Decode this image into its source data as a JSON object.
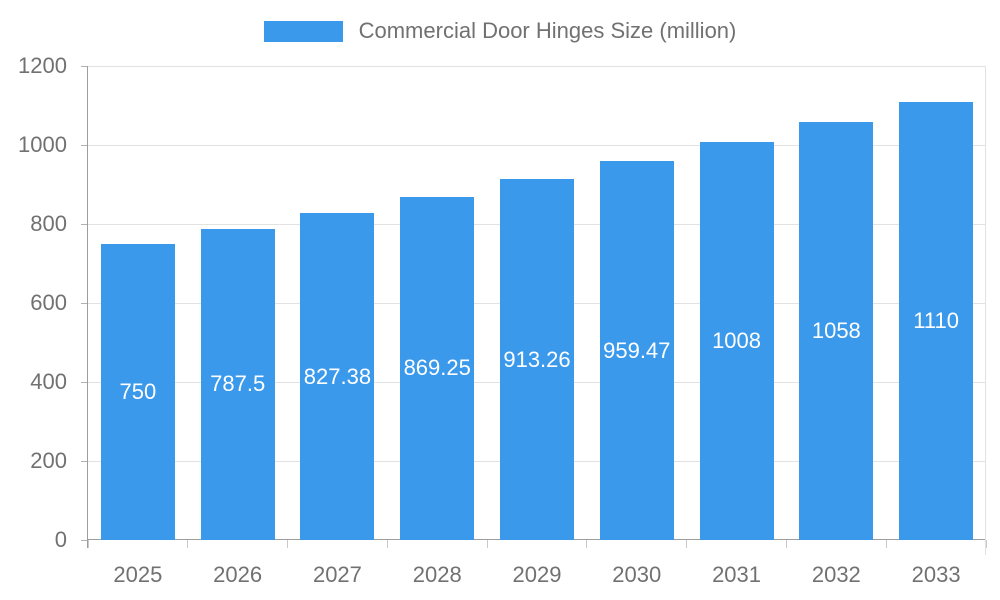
{
  "legend": {
    "label": "Commercial Door Hinges Size (million)"
  },
  "chart_data": {
    "type": "bar",
    "title": "Commercial Door Hinges Size (million)",
    "series_name": "Commercial Door Hinges Size (million)",
    "categories": [
      "2025",
      "2026",
      "2027",
      "2028",
      "2029",
      "2030",
      "2031",
      "2032",
      "2033"
    ],
    "values": [
      750,
      787.5,
      827.38,
      869.25,
      913.26,
      959.47,
      1008,
      1058,
      1110
    ],
    "value_labels": [
      "750",
      "787.5",
      "827.38",
      "869.25",
      "913.26",
      "959.47",
      "1008",
      "1058",
      "1110"
    ],
    "xlabel": "",
    "ylabel": "",
    "ylim": [
      0,
      1200
    ],
    "yticks": [
      0,
      200,
      400,
      600,
      800,
      1000,
      1200
    ],
    "grid": true,
    "legend_position": "top-center",
    "colors": {
      "bar": "#3B99EC",
      "value_label_text": "#FFFFFF",
      "tick_text": "#717171",
      "gridline": "#E2E2E2",
      "axis_line": "#9E9E9E"
    }
  }
}
